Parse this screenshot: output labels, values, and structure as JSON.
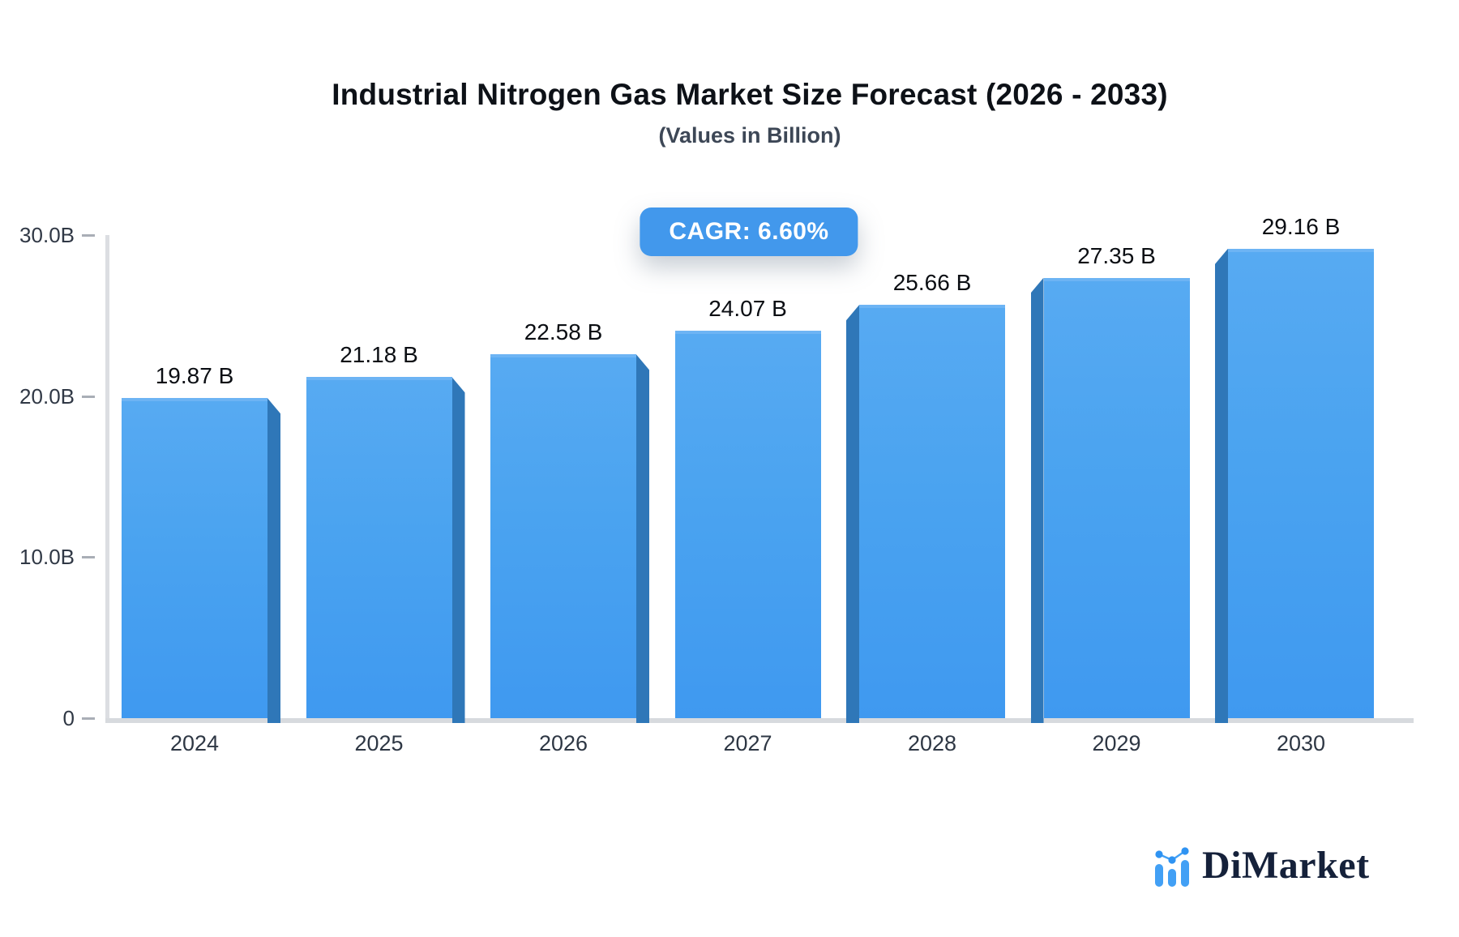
{
  "header": {
    "title": "Industrial Nitrogen Gas Market Size Forecast (2026 - 2033)",
    "subtitle": "(Values in Billion)",
    "cagr_badge": "CAGR: 6.60%"
  },
  "chart_data": {
    "type": "bar",
    "title": "Industrial Nitrogen Gas Market Size Forecast (2026 - 2033)",
    "subtitle": "(Values in Billion)",
    "categories": [
      "2024",
      "2025",
      "2026",
      "2027",
      "2028",
      "2029",
      "2030"
    ],
    "values": [
      19.87,
      21.18,
      22.58,
      24.07,
      25.66,
      27.35,
      29.16
    ],
    "value_labels": [
      "19.87 B",
      "21.18 B",
      "22.58 B",
      "24.07 B",
      "25.66 B",
      "27.35 B",
      "29.16 B"
    ],
    "cagr_percent": "6.60%",
    "xlabel": "",
    "ylabel": "",
    "ylim": [
      0,
      30
    ],
    "y_ticks": [
      {
        "label": "30.0B",
        "value": 30
      },
      {
        "label": "20.0B",
        "value": 20
      },
      {
        "label": "10.0B",
        "value": 10
      },
      {
        "label": "0",
        "value": 0
      }
    ],
    "grid": false,
    "legend_position": "none",
    "bar_color": "#4aa3f0",
    "bar_side_color": "#2f77b8"
  },
  "branding": {
    "logo_text": "DiMarket",
    "logo_icon": "bar-chart-dots-icon",
    "logo_text_color": "#15213a",
    "logo_icon_color": "#42a0f5"
  },
  "colors": {
    "badge_bg": "#4298ec",
    "badge_text": "#ffffff",
    "title_text": "#0d1117",
    "subtitle_text": "#3d4756",
    "axis_line": "#d7dade",
    "tick_label": "#303845",
    "background": "#ffffff"
  }
}
